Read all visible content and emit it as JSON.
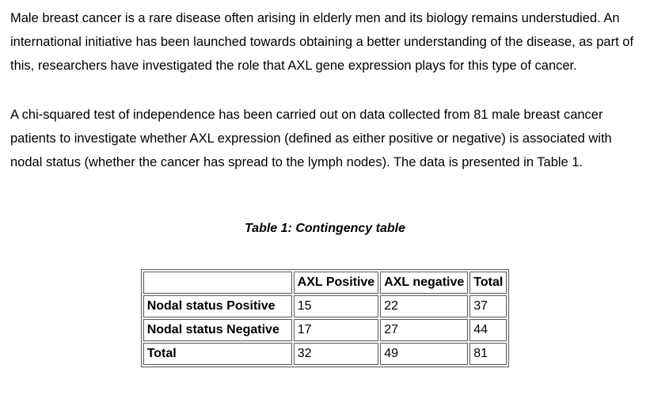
{
  "document": {
    "paragraphs": [
      "Male breast cancer is a rare disease often arising in elderly men and its biology remains understudied. An international initiative has been launched towards obtaining a better understanding of the disease, as part of this, researchers have investigated the role that AXL gene expression plays for this type of cancer.",
      "A chi-squared test of independence has been carried out on data collected from 81 male breast cancer patients to investigate whether AXL expression (defined as either positive or negative) is associated with nodal status (whether the cancer has spread to the lymph nodes). The data is presented in Table 1."
    ]
  },
  "table": {
    "caption": "Table 1: Contingency table",
    "columns": [
      "",
      "AXL Positive",
      "AXL negative",
      "Total"
    ],
    "rows": [
      [
        "Nodal status Positive",
        "15",
        "22",
        "37"
      ],
      [
        "Nodal status Negative",
        "17",
        "27",
        "44"
      ],
      [
        "Total",
        "32",
        "49",
        "81"
      ]
    ]
  }
}
